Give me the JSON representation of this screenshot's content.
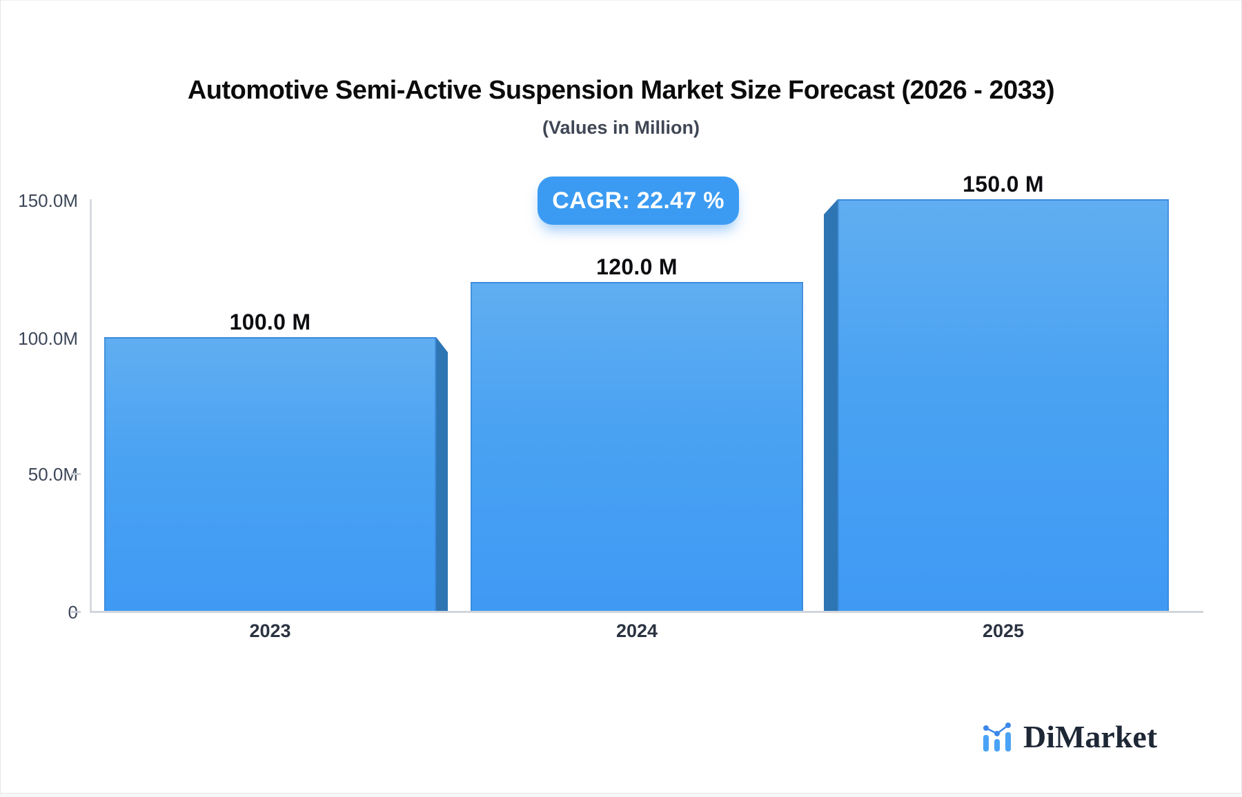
{
  "title": "Automotive Semi-Active Suspension Market Size Forecast (2026 - 2033)",
  "subtitle": "(Values in Million)",
  "cagr": {
    "label": "CAGR: 22.47 %",
    "value_pct": 22.47
  },
  "brand": {
    "name": "DiMarket"
  },
  "chart_data": {
    "type": "bar",
    "categories": [
      "2023",
      "2024",
      "2025"
    ],
    "values": [
      100.0,
      120.0,
      150.0
    ],
    "unit": "Million",
    "value_labels": [
      "100.0 M",
      "120.0 M",
      "150.0 M"
    ],
    "title": "Automotive Semi-Active Suspension Market Size Forecast (2026 - 2033)",
    "xlabel": "",
    "ylabel": "",
    "ylim": [
      0,
      150
    ],
    "y_ticks": {
      "t150": "150.0M",
      "t100": "100.0M",
      "t50": "50.0M",
      "t0": "0"
    },
    "grid": "off",
    "legend": "none",
    "colors": {
      "bar_top": "#60aef1",
      "bar_bottom": "#3f9af4",
      "bar_side_3d": "#2e75b4",
      "badge_blue": "#3b9bf2",
      "axis_gray": "#d7dae0",
      "label_dark": "#2b3342"
    }
  }
}
